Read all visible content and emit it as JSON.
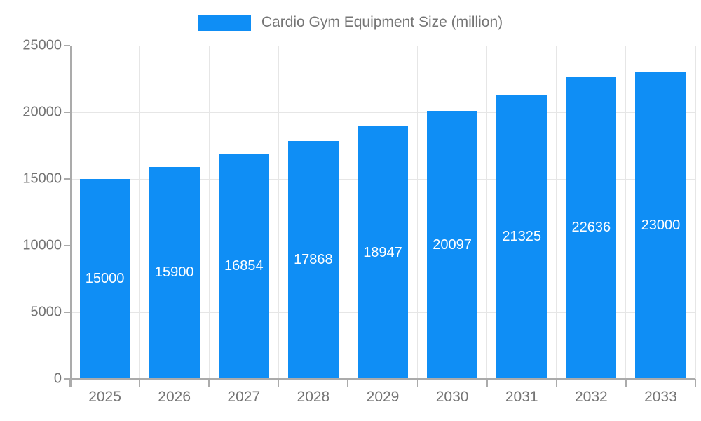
{
  "legend": {
    "label": "Cardio Gym Equipment Size (million)"
  },
  "chart_data": {
    "type": "bar",
    "title": "Cardio Gym Equipment Size (million)",
    "categories": [
      "2025",
      "2026",
      "2027",
      "2028",
      "2029",
      "2030",
      "2031",
      "2032",
      "2033"
    ],
    "values": [
      15000,
      15900,
      16854,
      17868,
      18947,
      20097,
      21325,
      22636,
      23000
    ],
    "xlabel": "",
    "ylabel": "",
    "ylim": [
      0,
      25000
    ],
    "yticks": [
      0,
      5000,
      10000,
      15000,
      20000,
      25000
    ],
    "grid": true,
    "legend_position": "top",
    "value_labels": "inside-center",
    "colors": {
      "bar": "#0f8ef5",
      "grid": "#e6e6e6",
      "axis": "#ababab",
      "tick_text": "#757575",
      "value_label_text": "#ffffff",
      "background": "#ffffff"
    }
  }
}
